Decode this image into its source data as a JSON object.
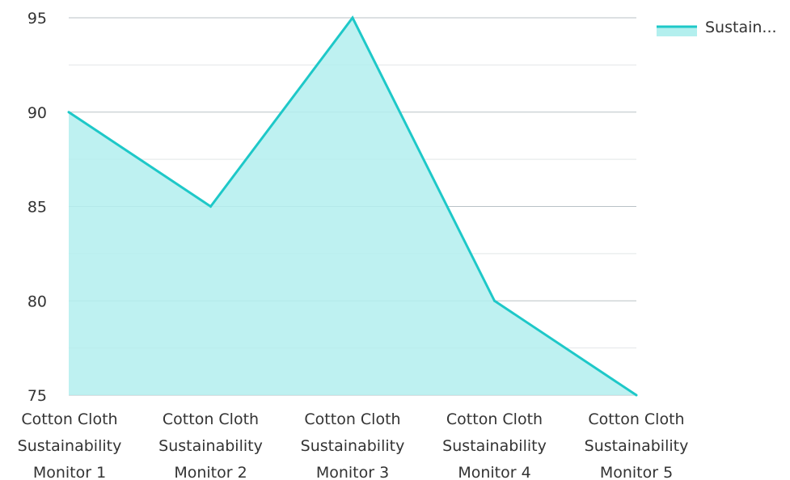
{
  "chart_data": {
    "type": "area",
    "categories": [
      [
        "Cotton Cloth",
        "Sustainability",
        "Monitor 1"
      ],
      [
        "Cotton Cloth",
        "Sustainability",
        "Monitor 2"
      ],
      [
        "Cotton Cloth",
        "Sustainability",
        "Monitor 3"
      ],
      [
        "Cotton Cloth",
        "Sustainability",
        "Monitor 4"
      ],
      [
        "Cotton Cloth",
        "Sustainability",
        "Monitor 5"
      ]
    ],
    "series": [
      {
        "name": "Sustain...",
        "values": [
          90,
          85,
          95,
          80,
          75
        ]
      }
    ],
    "ylim": [
      75,
      95
    ],
    "yticks": [
      75,
      80,
      85,
      90,
      95
    ],
    "grid": true,
    "legend_position": "top-right",
    "colors": {
      "line": "#1ec8c8",
      "fill": "#b3efee",
      "major_grid": "#b9c2c6",
      "minor_grid": "#e2e6e8"
    }
  }
}
